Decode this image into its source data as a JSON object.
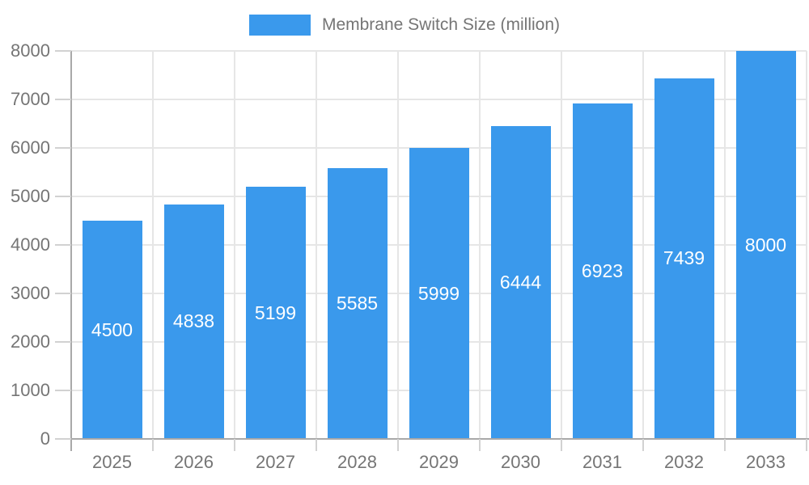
{
  "legend": {
    "label": "Membrane Switch Size (million)"
  },
  "chart_data": {
    "type": "bar",
    "title": "Membrane Switch Size (million)",
    "categories": [
      "2025",
      "2026",
      "2027",
      "2028",
      "2029",
      "2030",
      "2031",
      "2032",
      "2033"
    ],
    "values": [
      4500,
      4838,
      5199,
      5585,
      5999,
      6444,
      6923,
      7439,
      8000
    ],
    "series_name": "Membrane Switch Size (million)",
    "xlabel": "",
    "ylabel": "",
    "ylim": [
      0,
      8000
    ],
    "y_ticks": [
      0,
      1000,
      2000,
      3000,
      4000,
      5000,
      6000,
      7000,
      8000
    ],
    "grid": true,
    "legend_position": "top-center",
    "value_labels": "inside-middle",
    "colors": {
      "bar": "#3A99EC",
      "value_label": "#FFFFFF",
      "axis": "#A9A9A9",
      "grid": "#E6E6E6",
      "tick": "#D2D2D2",
      "text": "#757575",
      "background": "#FFFFFF"
    }
  }
}
